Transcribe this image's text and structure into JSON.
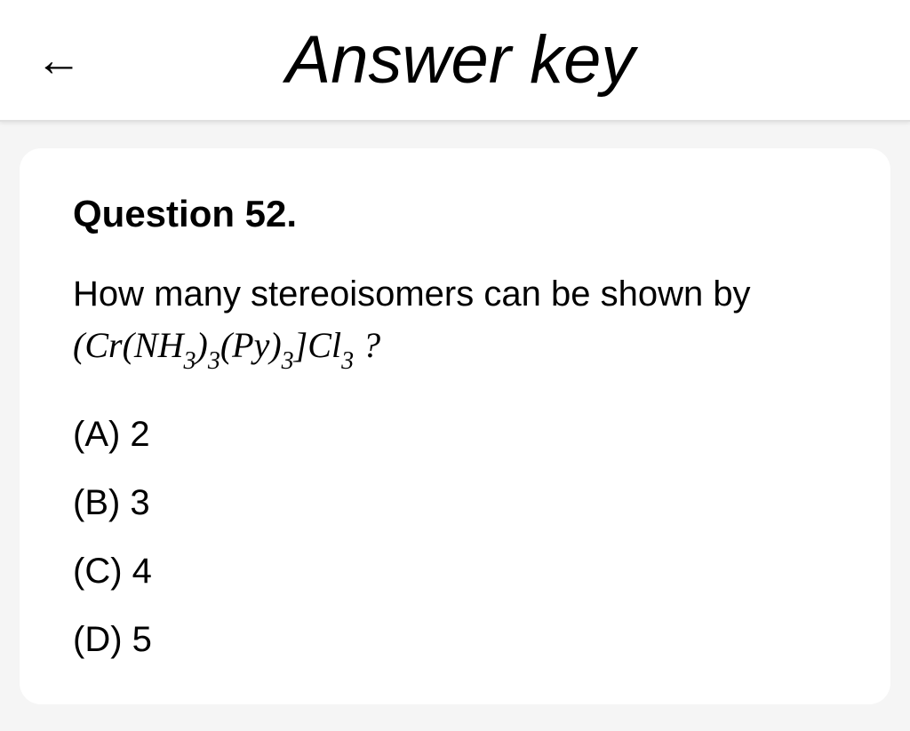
{
  "header": {
    "title": "Answer key",
    "back_icon_glyph": "←"
  },
  "question": {
    "number_label": "Question 52.",
    "text": "How many stereoisomers can be shown by",
    "formula_parts": {
      "open": "(",
      "cr": "Cr",
      "open2": "(",
      "n": "N",
      "h": "H",
      "sub3a": "3",
      "close1": ")",
      "sub3b": "3",
      "open3": "(",
      "p": "P",
      "y": "y",
      "close2": ")",
      "sub3c": "3",
      "close3": "]",
      "c": "C",
      "l": "l",
      "sub3d": "3",
      "qmark": " ?"
    },
    "options": [
      {
        "label": "(A) 2"
      },
      {
        "label": "(B) 3"
      },
      {
        "label": "(C) 4"
      },
      {
        "label": "(D) 5"
      }
    ]
  },
  "colors": {
    "background": "#f5f5f5",
    "card_background": "#ffffff",
    "text": "#000000",
    "divider": "#e0e0e0"
  }
}
